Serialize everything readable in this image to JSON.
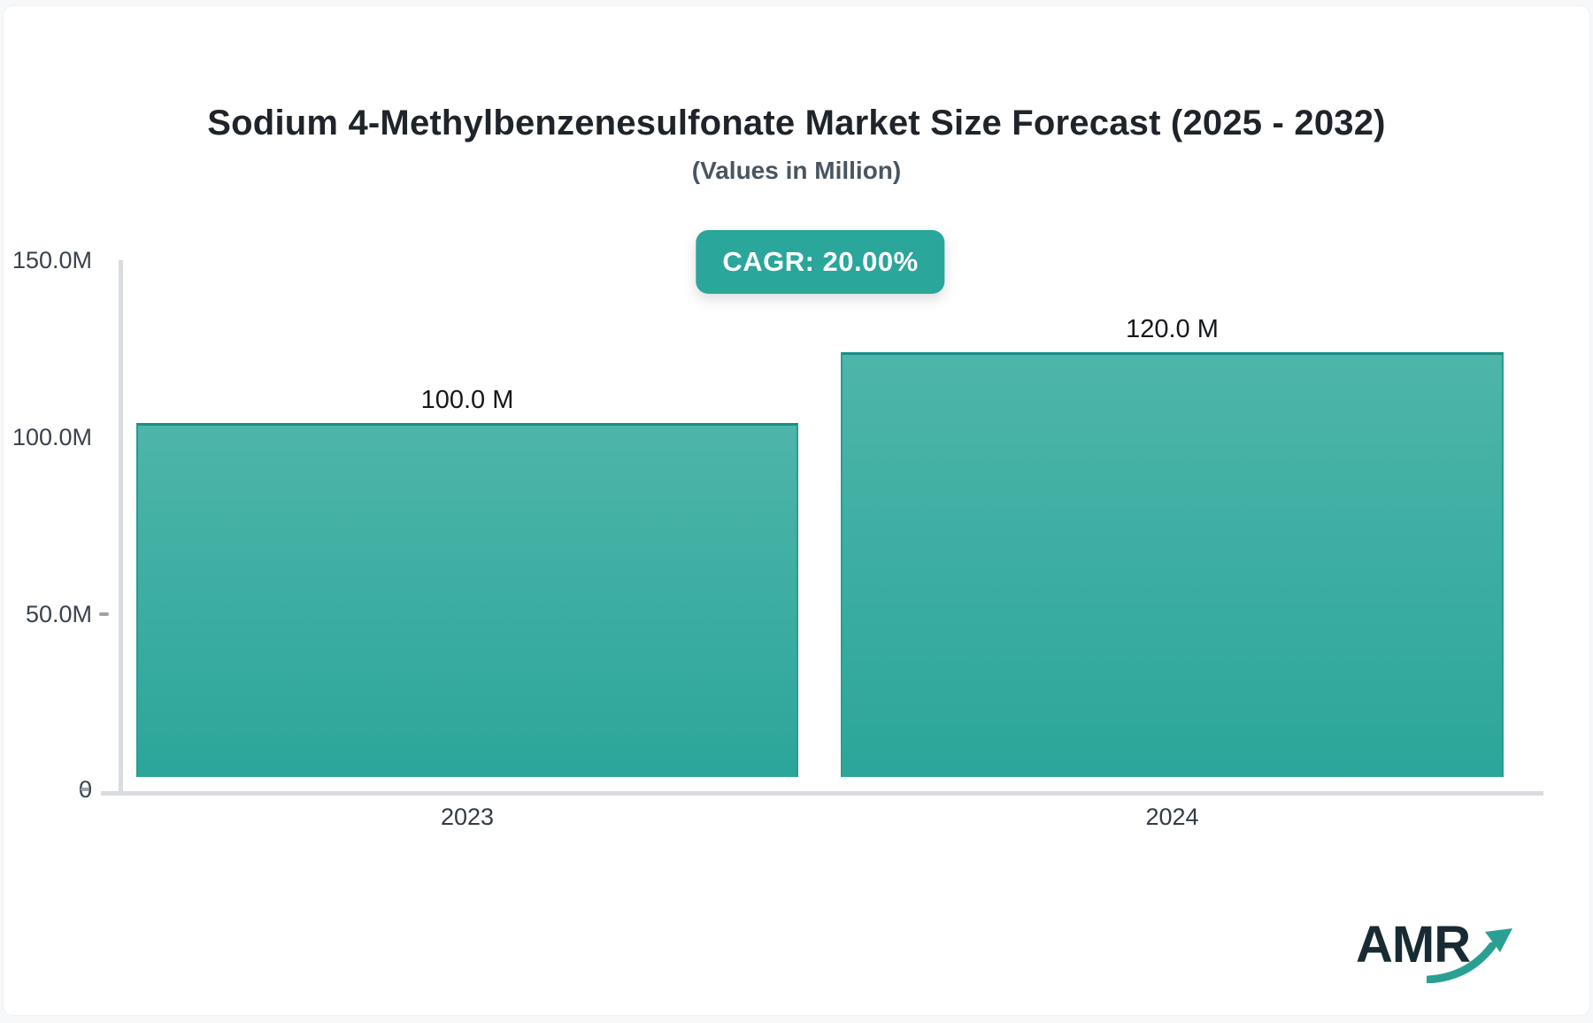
{
  "chart": {
    "title": "Sodium 4-Methylbenzenesulfonate Market Size Forecast (2025 - 2032)",
    "subtitle": "(Values in Million)",
    "cagr_label": "CAGR: 20.00%"
  },
  "chart_data": {
    "type": "bar",
    "title": "Sodium 4-Methylbenzenesulfonate Market Size Forecast (2025 - 2032)",
    "subtitle": "(Values in Million)",
    "categories": [
      "2023",
      "2024"
    ],
    "values": [
      100.0,
      120.0
    ],
    "value_labels": [
      "100.0 M",
      "120.0 M"
    ],
    "cagr_percent": 20.0,
    "xlabel": "",
    "ylabel": "",
    "ylim": [
      0,
      150
    ],
    "ytick_labels": [
      "150.0M",
      "100.0M",
      "50.0M",
      "0"
    ],
    "grid": false,
    "legend": "none",
    "units": "Million"
  },
  "logo": {
    "text": "AMR",
    "icon": "trend-up-arrow"
  },
  "colors": {
    "accent_teal": "#2aa69b",
    "bar_gradient_top": "#4eb5aa",
    "bar_gradient_bottom": "#2ba699",
    "bar_border": "#21958a",
    "axis_line": "#d9dce1",
    "title_text": "#1f242b",
    "subtitle_text": "#4a5560",
    "tick_text": "#3a434d",
    "page_background": "#f7f8f9",
    "card_background": "#ffffff",
    "logo_text": "#182b33"
  }
}
